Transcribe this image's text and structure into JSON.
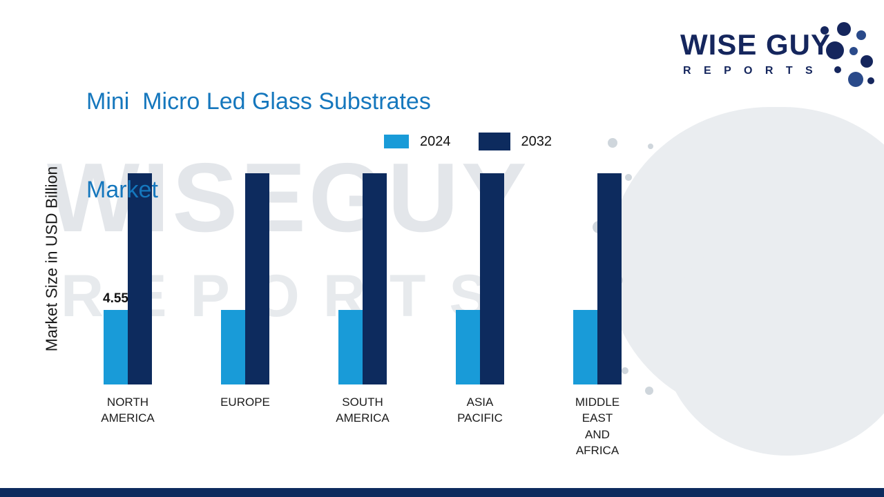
{
  "page": {
    "title_line1": "Mini  Micro Led Glass Substrates",
    "title_line2": "Market",
    "title_color": "#1577bd",
    "footer_bar_color": "#0d2b5e"
  },
  "logo": {
    "brand": "WISE GUY",
    "reports": "R E P O R T S",
    "color": "#15265d"
  },
  "watermark": {
    "line1": "WISEGUY",
    "line2": "REPORTS"
  },
  "chart_data": {
    "type": "bar",
    "title": "Mini  Micro Led Glass Substrates Market",
    "ylabel": "Market Size in USD Billion",
    "xlabel": "",
    "categories": [
      "NORTH AMERICA",
      "EUROPE",
      "SOUTH AMERICA",
      "ASIA PACIFIC",
      "MIDDLE EAST AND AFRICA"
    ],
    "category_label_lines": [
      [
        "NORTH",
        "AMERICA"
      ],
      [
        "EUROPE"
      ],
      [
        "SOUTH",
        "AMERICA"
      ],
      [
        "ASIA",
        "PACIFIC"
      ],
      [
        "MIDDLE",
        "EAST",
        "AND",
        "AFRICA"
      ]
    ],
    "series": [
      {
        "name": "2024",
        "color": "#199bd8",
        "values": [
          4.55,
          4.55,
          4.55,
          4.55,
          4.55
        ]
      },
      {
        "name": "2032",
        "color": "#0d2b5e",
        "values": [
          12.95,
          12.95,
          12.95,
          12.95,
          12.95
        ]
      }
    ],
    "data_labels": [
      {
        "series": "2024",
        "category_index": 0,
        "text": "4.55"
      }
    ],
    "ylim": [
      0,
      12.95
    ],
    "grid": false,
    "legend_position": "top"
  }
}
